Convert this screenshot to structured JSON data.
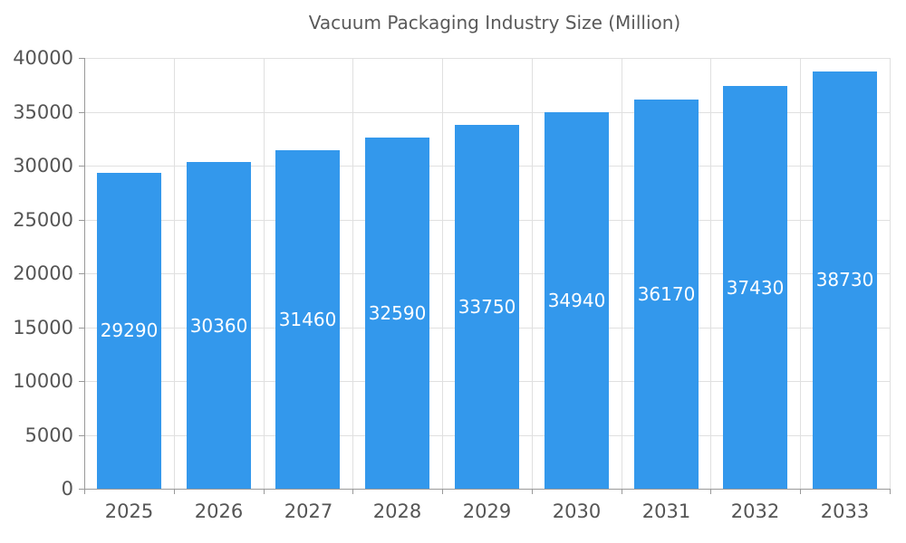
{
  "chart_data": {
    "type": "bar",
    "title": "Vacuum Packaging Industry Size (Million)",
    "categories": [
      "2025",
      "2026",
      "2027",
      "2028",
      "2029",
      "2030",
      "2031",
      "2032",
      "2033"
    ],
    "values": [
      29290,
      30360,
      31460,
      32590,
      33750,
      34940,
      36170,
      37430,
      38730
    ],
    "series_name": "Vacuum Packaging Industry Size (Million)",
    "ylim": [
      0,
      40000
    ],
    "ytick_step": 5000,
    "ytick_labels": [
      "0",
      "5000",
      "10000",
      "15000",
      "20000",
      "25000",
      "30000",
      "35000",
      "40000"
    ],
    "grid": true,
    "legend_position": "top",
    "value_labels_shown": true,
    "colors": {
      "bar": "#3398ec",
      "axis": "#999999",
      "gridline": "#e0e0e0",
      "tick_text": "#555555",
      "value_label_text": "#ffffff",
      "legend_text": "#595959",
      "background": "#ffffff"
    }
  }
}
